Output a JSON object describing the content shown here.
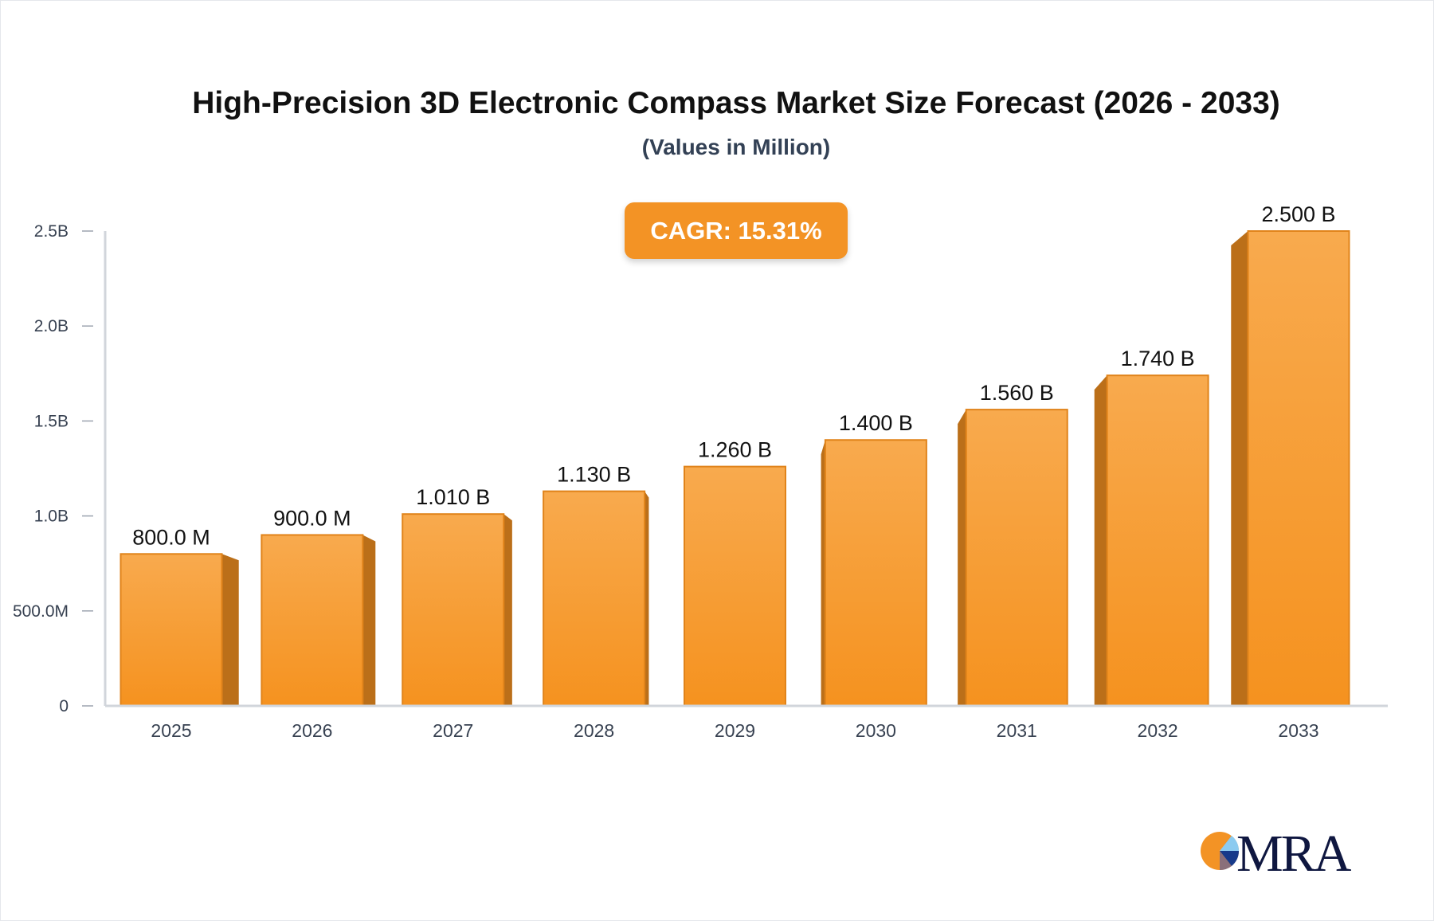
{
  "chart_data": {
    "type": "bar",
    "title": "High-Precision 3D Electronic Compass Market Size Forecast (2026 - 2033)",
    "subtitle": "(Values in Million)",
    "annotation": "CAGR: 15.31%",
    "categories": [
      "2025",
      "2026",
      "2027",
      "2028",
      "2029",
      "2030",
      "2031",
      "2032",
      "2033"
    ],
    "values": [
      800,
      900,
      1010,
      1130,
      1260,
      1400,
      1560,
      1740,
      2500
    ],
    "data_labels": [
      "800.0 M",
      "900.0 M",
      "1.010 B",
      "1.130 B",
      "1.260 B",
      "1.400 B",
      "1.560 B",
      "1.740 B",
      "2.500 B"
    ],
    "unit": "Million",
    "ylim": [
      0,
      2500
    ],
    "y_ticks": [
      0,
      500,
      1000,
      1500,
      2000,
      2500
    ],
    "y_tick_labels": [
      "0",
      "500.0M",
      "1.0B",
      "1.5B",
      "2.0B",
      "2.5B"
    ],
    "xlabel": "",
    "ylabel": "",
    "grid": false,
    "legend": "none",
    "colors": {
      "bar_light": "#f8aa4e",
      "bar_dark": "#f5921f",
      "bar_side": "#bb6f19",
      "badge": "#f39325",
      "axis": "#d1d5db"
    }
  },
  "logo": {
    "text": "MRA"
  }
}
